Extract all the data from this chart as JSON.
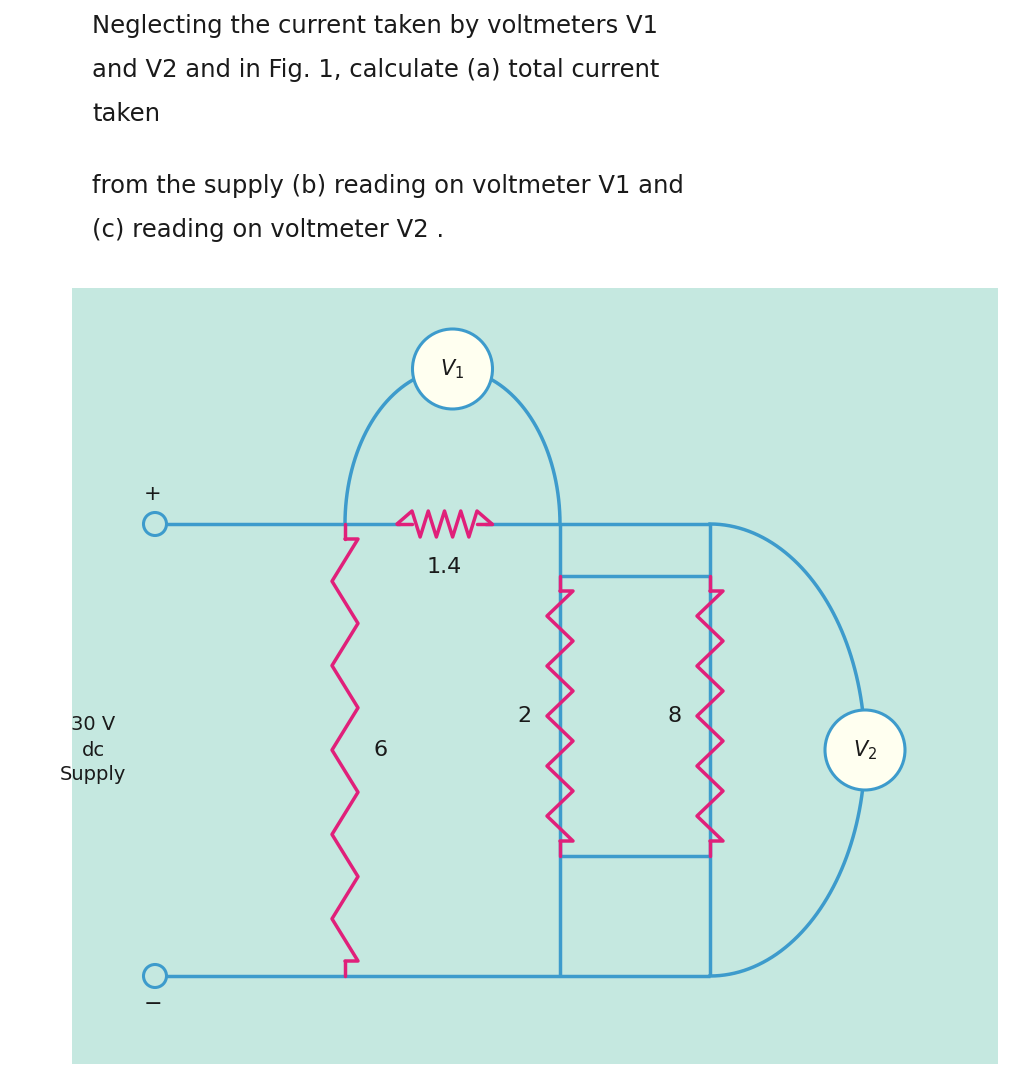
{
  "bg_color": "#ffffff",
  "circuit_bg": "#c5e8e0",
  "wire_color": "#3d9bcc",
  "resistor_color": "#e0207a",
  "voltmeter_fill": "#fffff0",
  "voltmeter_border": "#3d9bcc",
  "text_color": "#1a1a1a",
  "supply_label": "30 V\ndc\nSupply",
  "r1_label": "6",
  "r2_label": "1.4",
  "r3_label": "2",
  "r4_label": "8",
  "v1_label": "$V_1$",
  "v2_label": "$V_2$",
  "plus_label": "+",
  "minus_label": "−",
  "line1": "Neglecting the current taken by voltmeters V1",
  "line2": "and V2 and in Fig. 1, calculate (a) total current",
  "line3": "taken",
  "line4": "from the supply (b) reading on voltmeter V1 and",
  "line5": "(c) reading on voltmeter V2 ."
}
